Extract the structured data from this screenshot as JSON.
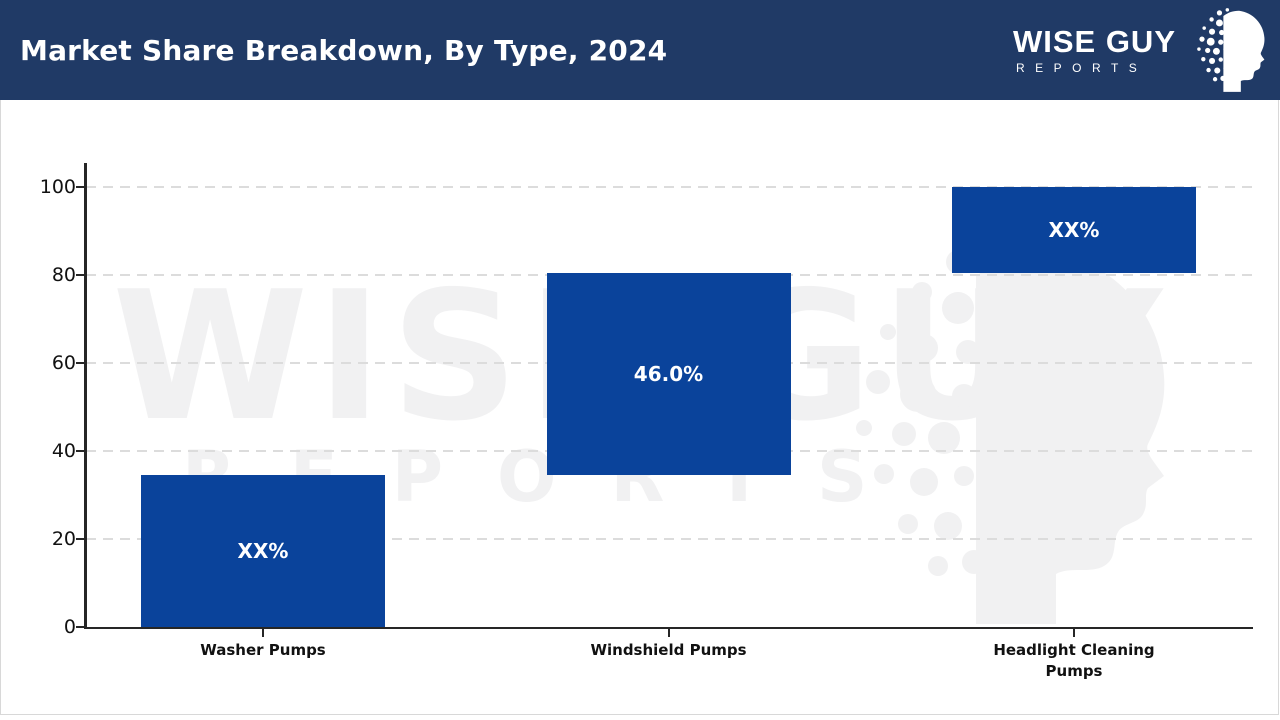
{
  "header": {
    "title": "Market Share Breakdown, By Type, 2024",
    "logo": {
      "wordmark": "WISE GUY",
      "subtitle": "REPORTS"
    }
  },
  "watermark": {
    "wordmark": "WISE GUY",
    "subtitle": "REPORTS"
  },
  "colors": {
    "header_bg": "#203a66",
    "title_text": "#ffffff",
    "bar_fill": "#0a439b",
    "bar_label_text": "#ffffff",
    "axis": "#262626",
    "tick_label_text": "#111111",
    "gridline": "#dcdcdc",
    "watermark_tint": "#f1f1f2",
    "page_border": "#d8d8d8"
  },
  "chart_data": {
    "type": "bar",
    "variant": "waterfall",
    "title": "Market Share Breakdown, By Type, 2024",
    "categories": [
      "Washer Pumps",
      "Windshield Pumps",
      "Headlight Cleaning Pumps"
    ],
    "series": [
      {
        "name": "Washer Pumps",
        "start": 0,
        "end": 34.5,
        "value_label": "XX%"
      },
      {
        "name": "Windshield Pumps",
        "start": 34.5,
        "end": 80.5,
        "value_label": "46.0%"
      },
      {
        "name": "Headlight Cleaning Pumps",
        "start": 80.5,
        "end": 100,
        "value_label": "XX%"
      }
    ],
    "ylim": [
      0,
      100
    ],
    "yticks": [
      0,
      20,
      40,
      60,
      80,
      100
    ],
    "xlabel": "",
    "ylabel": "",
    "grid": "horizontal-dashed",
    "legend": "none"
  }
}
